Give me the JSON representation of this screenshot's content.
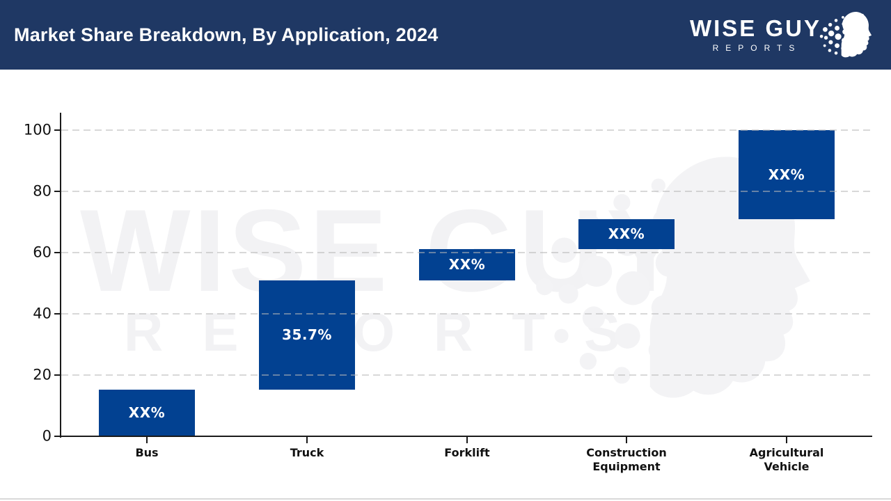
{
  "header": {
    "title": "Market Share Breakdown, By Application, 2024",
    "logo": {
      "wordmark": "WISE GUY",
      "subtext": "REPORTS"
    }
  },
  "watermark": {
    "wordmark": "WISE GUY",
    "subtext": "REPORTS"
  },
  "chart_data": {
    "type": "bar",
    "subtype": "floating-waterfall",
    "title": "Market Share Breakdown, By Application, 2024",
    "categories": [
      "Bus",
      "Truck",
      "Forklift",
      "Construction Equipment",
      "Agricultural Vehicle"
    ],
    "segments": [
      {
        "category": "Bus",
        "start": 0,
        "end": 15.3,
        "label": "XX%"
      },
      {
        "category": "Truck",
        "start": 15.3,
        "end": 51.0,
        "label": "35.7%"
      },
      {
        "category": "Forklift",
        "start": 51.0,
        "end": 61.2,
        "label": "XX%"
      },
      {
        "category": "Construction Equipment",
        "start": 61.2,
        "end": 71.0,
        "label": "XX%"
      },
      {
        "category": "Agricultural Vehicle",
        "start": 71.0,
        "end": 100.0,
        "label": "XX%"
      }
    ],
    "yticks": [
      0,
      20,
      40,
      60,
      80,
      100
    ],
    "ylim": [
      0,
      105.7
    ],
    "xlabel": "",
    "ylabel": "",
    "grid": true,
    "legend": false,
    "colors": {
      "bar": "#024191",
      "header": "#1F3864",
      "grid": "#c9c9c9",
      "axis": "#1a1a1a",
      "bar_label_text": "#ffffff",
      "watermark": "#f2f2f4"
    }
  }
}
